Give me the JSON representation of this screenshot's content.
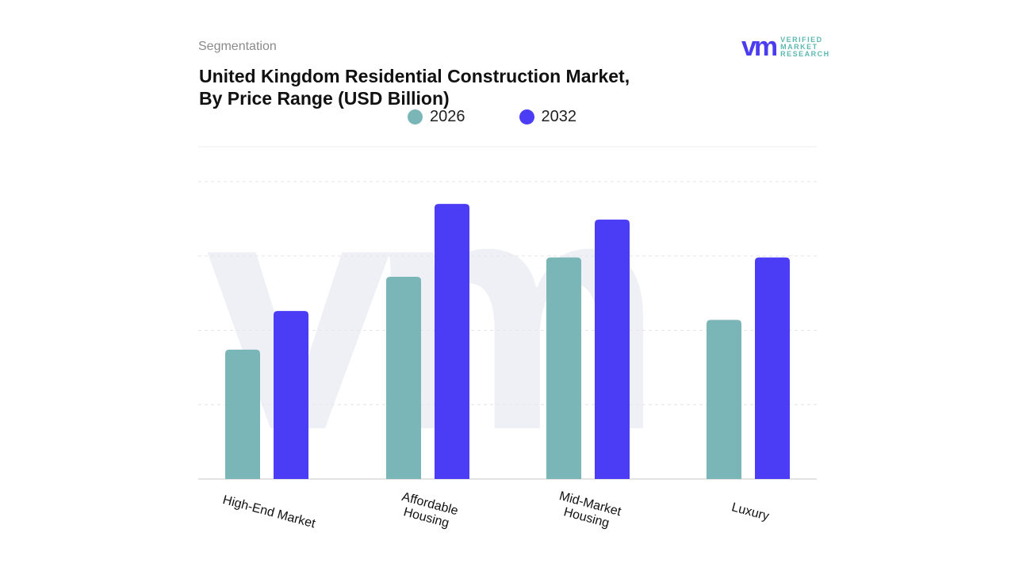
{
  "header": {
    "segment_label": "Segmentation",
    "title_line1": "United Kingdom Residential Construction Market,",
    "title_line2": "By Price Range (USD Billion)"
  },
  "logo": {
    "mark": "vm",
    "line1": "VERIFIED",
    "line2": "MARKET",
    "line3": "RESEARCH"
  },
  "chart_data": {
    "type": "bar",
    "title": "United Kingdom Residential Construction Market, By Price Range (USD Billion)",
    "categories": [
      "High-End Market",
      "Affordable Housing",
      "Mid-Market Housing",
      "Luxury"
    ],
    "category_lines": [
      [
        "High-End Market"
      ],
      [
        "Affordable",
        "Housing"
      ],
      [
        "Mid-Market",
        "Housing"
      ],
      [
        "Luxury"
      ]
    ],
    "series": [
      {
        "name": "2026",
        "color": "#7ab5b8",
        "values": [
          1.74,
          2.72,
          2.98,
          2.14
        ]
      },
      {
        "name": "2032",
        "color": "#4b3cf5",
        "values": [
          2.26,
          3.7,
          3.49,
          2.98
        ]
      }
    ],
    "ylim": [
      0,
      4
    ],
    "grid": true,
    "y_axis_labels_shown": false,
    "legend_placement": "top-center"
  }
}
